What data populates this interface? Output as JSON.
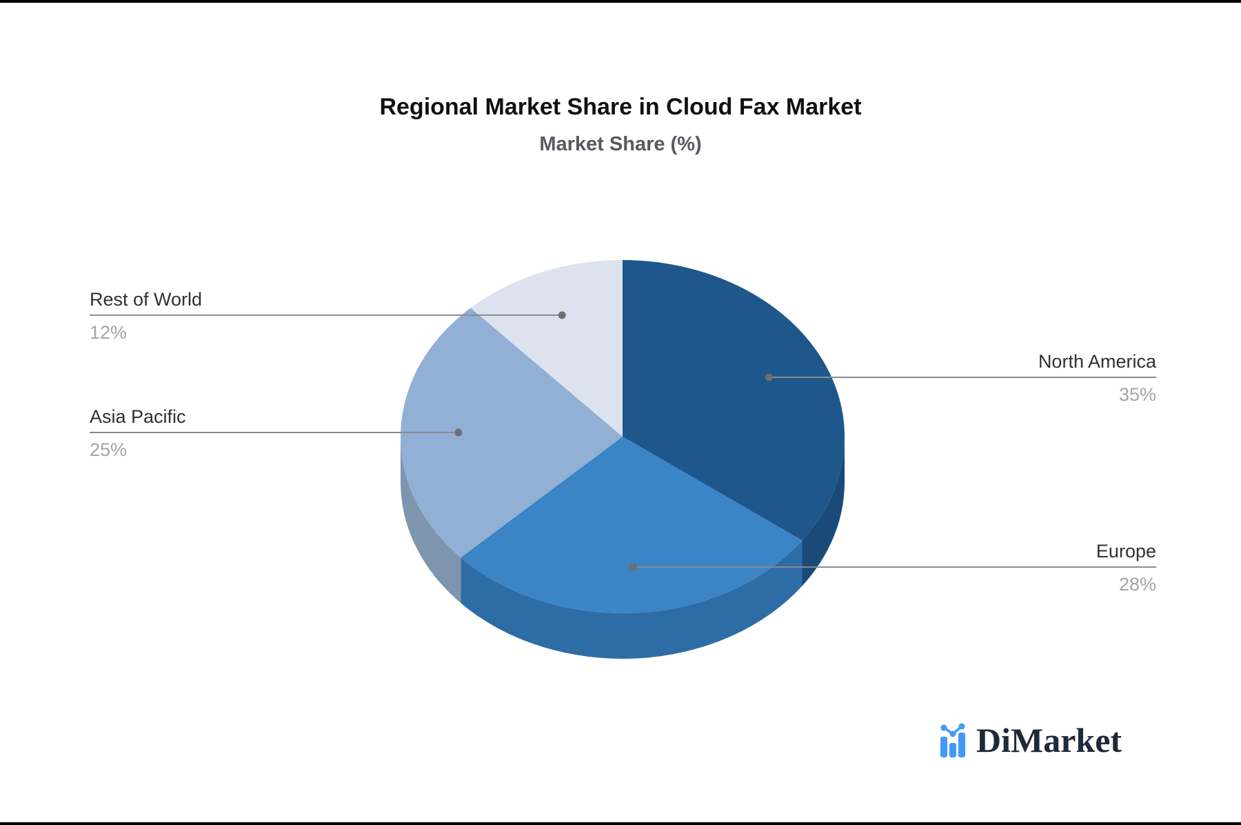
{
  "page": {
    "background": "#ffffff",
    "edge_bar_color": "#000000"
  },
  "header": {
    "title": "Regional Market Share in Cloud Fax Market",
    "subtitle": "Market Share (%)",
    "title_color": "#101010",
    "subtitle_color": "#555a60"
  },
  "chart_data": {
    "type": "pie",
    "style": "3d-pie-with-depth",
    "title": "Regional Market Share in Cloud Fax Market",
    "subtitle": "Market Share (%)",
    "unit": "%",
    "start_angle_deg": 90,
    "clockwise": true,
    "total": 100,
    "slices": [
      {
        "label": "North America",
        "value": 35,
        "display": "35%",
        "color": "#1e578c",
        "side_color": "#1a4a77",
        "label_side": "right"
      },
      {
        "label": "Europe",
        "value": 28,
        "display": "28%",
        "color": "#3b84c6",
        "side_color": "#2e6ca6",
        "label_side": "right"
      },
      {
        "label": "Asia Pacific",
        "value": 25,
        "display": "25%",
        "color": "#92b0d6",
        "side_color": "#7e95ae",
        "label_side": "left"
      },
      {
        "label": "Rest of World",
        "value": 12,
        "display": "12%",
        "color": "#dde3ee",
        "side_color": "#c3cbd9",
        "label_side": "left"
      }
    ],
    "leader": {
      "line_color": "#8a8a8a",
      "dot_color": "#6f6f6f"
    },
    "label_text_color": "#303030",
    "value_text_color": "#a1a4a8",
    "legend": "none",
    "grid": false
  },
  "logo": {
    "text": "DiMarket",
    "text_color": "#1e2a3a",
    "icon_color": "#4399f7",
    "icon_name": "bar-line-chart-icon"
  }
}
